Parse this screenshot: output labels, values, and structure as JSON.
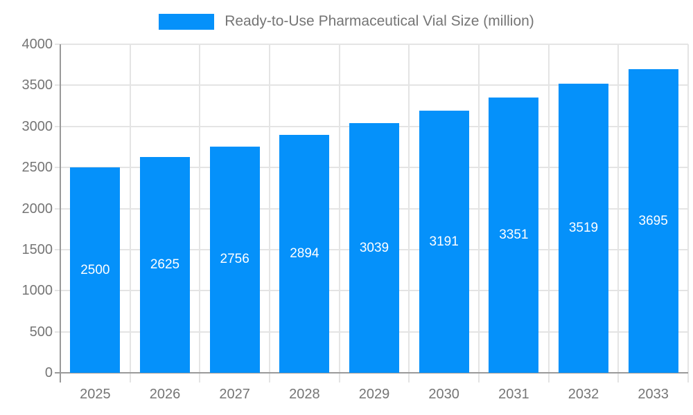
{
  "legend": {
    "label": "Ready-to-Use Pharmaceutical Vial Size (million)"
  },
  "colors": {
    "bar": "#0591fa",
    "grid": "#e4e4e4",
    "axis": "#999999",
    "text": "#757575",
    "bar_label": "#ffffff",
    "background": "#ffffff"
  },
  "chart_data": {
    "type": "bar",
    "title": "Ready-to-Use Pharmaceutical Vial Size (million)",
    "categories": [
      "2025",
      "2026",
      "2027",
      "2028",
      "2029",
      "2030",
      "2031",
      "2032",
      "2033"
    ],
    "values": [
      2500,
      2625,
      2756,
      2894,
      3039,
      3191,
      3351,
      3519,
      3695
    ],
    "series": [
      {
        "name": "Ready-to-Use Pharmaceutical Vial Size (million)",
        "values": [
          2500,
          2625,
          2756,
          2894,
          3039,
          3191,
          3351,
          3519,
          3695
        ]
      }
    ],
    "xlabel": "",
    "ylabel": "",
    "ylim": [
      0,
      4000
    ],
    "yticks": [
      0,
      500,
      1000,
      1500,
      2000,
      2500,
      3000,
      3500,
      4000
    ],
    "grid": true,
    "legend_position": "top-center",
    "bar_labels_visible": true,
    "bar_label_position": "center-inside"
  }
}
